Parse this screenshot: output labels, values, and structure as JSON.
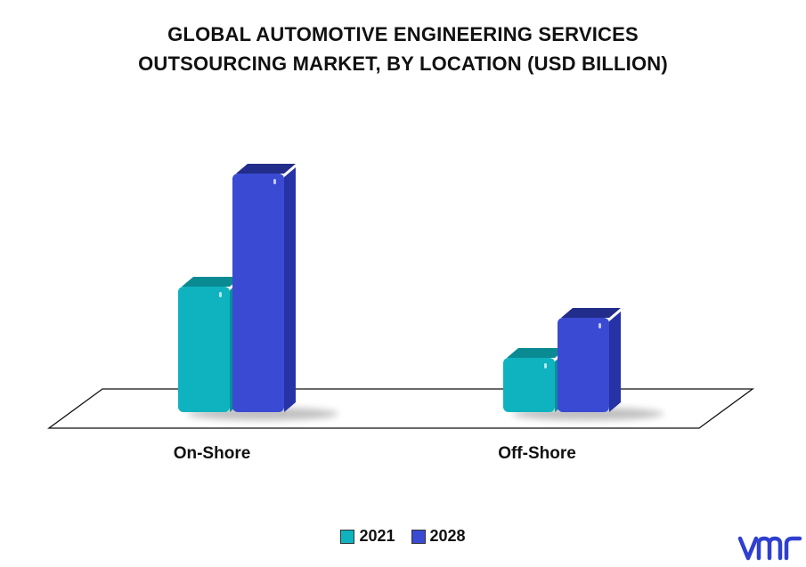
{
  "chart_data": {
    "type": "bar",
    "title_lines": [
      "GLOBAL AUTOMOTIVE ENGINEERING SERVICES",
      "OUTSOURCING MARKET, BY LOCATION (USD BILLION)"
    ],
    "categories": [
      "On-Shore",
      "Off-Shore"
    ],
    "series": [
      {
        "name": "2021",
        "values": [
          141,
          61
        ],
        "color": "#0fb3bf",
        "top_color": "#0a8a93",
        "side_color": "#0a8f99"
      },
      {
        "name": "2028",
        "values": [
          268,
          106
        ],
        "color": "#3a4ad2",
        "top_color": "#222c8a",
        "side_color": "#2633a6"
      }
    ],
    "ylim": [
      0,
      300
    ],
    "grid": false,
    "legend": "bottom-center"
  },
  "logo": {
    "text": "vmr",
    "color": "#2f3fcf"
  }
}
